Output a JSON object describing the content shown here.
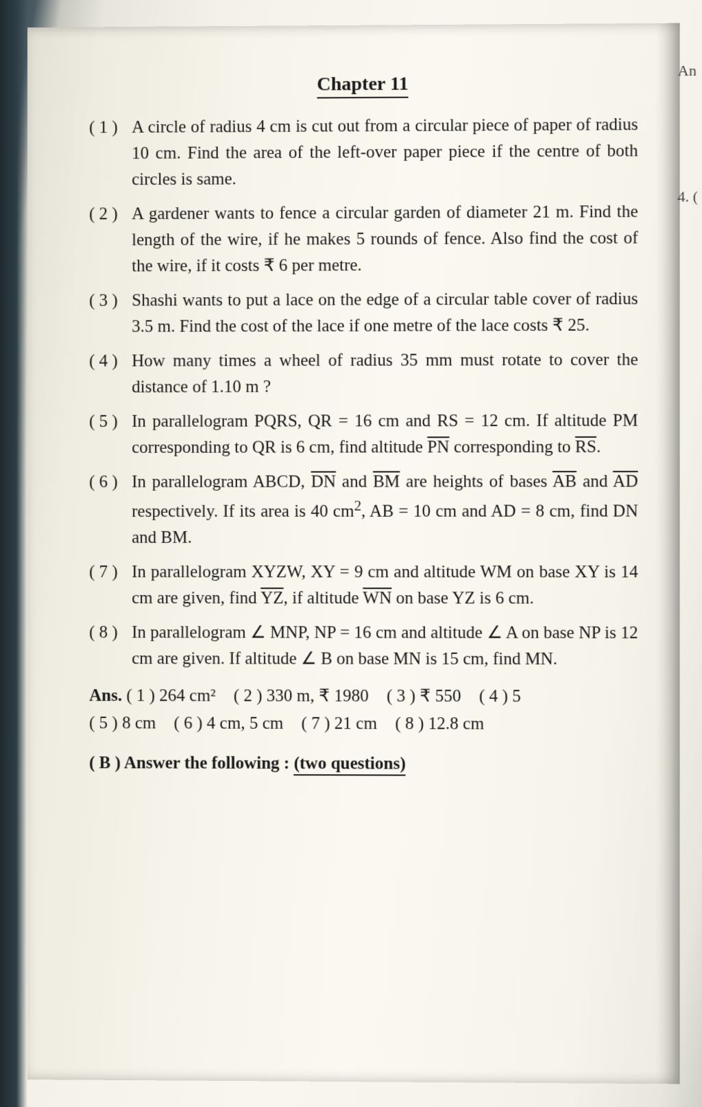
{
  "chapter": {
    "title": "Chapter 11"
  },
  "margin": {
    "an": "An",
    "note41": "4. ("
  },
  "questions": [
    {
      "num": "( 1 )",
      "text": "A circle of radius 4 cm is cut out from a circular piece of paper of radius 10 cm. Find the area of the left-over paper piece if the centre of both circles is same."
    },
    {
      "num": "( 2 )",
      "text": "A gardener wants to fence a circular garden of diameter 21 m. Find the length of the wire, if he makes 5 rounds of fence. Also find the cost of the wire, if it costs ₹ 6 per metre."
    },
    {
      "num": "( 3 )",
      "text": "Shashi wants to put a lace on the edge of a circular table cover of radius 3.5 m. Find the cost of the lace if one metre of the lace costs ₹ 25."
    },
    {
      "num": "( 4 )",
      "text": "How many times a wheel of radius 35 mm must rotate to cover the distance of 1.10 m ?"
    },
    {
      "num": "( 5 )",
      "text": "In parallelogram PQRS, QR = 16 cm and RS = 12 cm. If altitude PM corresponding to QR is 6 cm, find altitude <span class=\"overline\">PN</span> corresponding to <span class=\"overline\">RS</span>."
    },
    {
      "num": "( 6 )",
      "text": "In parallelogram ABCD, <span class=\"overline\">DN</span> and <span class=\"overline\">BM</span> are heights of bases <span class=\"overline\">AB</span> and <span class=\"overline\">AD</span> respectively. If its area is 40 cm<sup>2</sup>, AB = 10 cm and AD = 8 cm, find DN and BM."
    },
    {
      "num": "( 7 )",
      "text": "In parallelogram XYZW, XY = 9 cm and altitude WM on base XY is 14 cm are given, find <span class=\"overline\">YZ</span>, if altitude <span class=\"overline\">WN</span> on base YZ is 6 cm."
    },
    {
      "num": "( 8 )",
      "text": "In parallelogram ∠ MNP, NP = 16 cm and altitude ∠ A on base NP is 12 cm are given. If altitude ∠ B on base MN is 15 cm, find MN."
    }
  ],
  "answers": {
    "label": "Ans.",
    "items": [
      {
        "n": "( 1 )",
        "v": "264 cm²"
      },
      {
        "n": "( 2 )",
        "v": "330 m,  ₹ 1980"
      },
      {
        "n": "( 3 )",
        "v": "₹ 550"
      },
      {
        "n": "( 4 )",
        "v": "5"
      },
      {
        "n": "( 5 )",
        "v": "8 cm"
      },
      {
        "n": "( 6 )",
        "v": "4 cm, 5 cm"
      },
      {
        "n": "( 7 )",
        "v": "21 cm"
      },
      {
        "n": "( 8 )",
        "v": "12.8 cm"
      }
    ]
  },
  "sectionB": {
    "label": "( B ) Answer the following :",
    "note": "(two questions)"
  }
}
